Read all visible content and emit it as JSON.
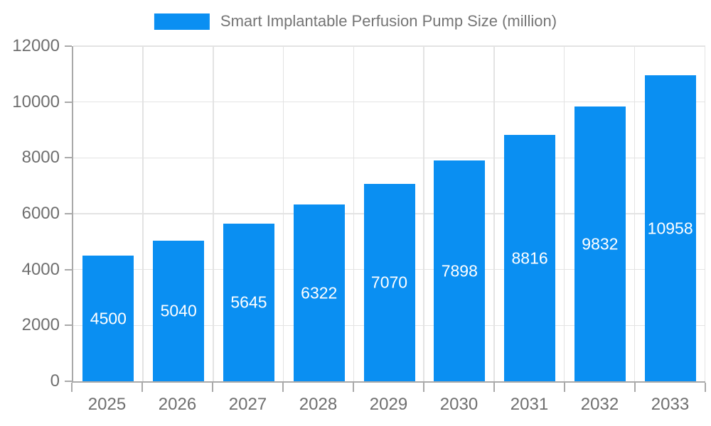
{
  "chart_data": {
    "type": "bar",
    "title": "Smart Implantable Perfusion Pump Size (million)",
    "legend": [
      "Smart Implantable Perfusion Pump Size (million)"
    ],
    "legend_position": "top-center",
    "categories": [
      "2025",
      "2026",
      "2027",
      "2028",
      "2029",
      "2030",
      "2031",
      "2032",
      "2033"
    ],
    "values": [
      4500,
      5040,
      5645,
      6322,
      7070,
      7898,
      8816,
      9832,
      10958
    ],
    "bar_value_labels": [
      "4500",
      "5040",
      "5645",
      "6322",
      "7070",
      "7898",
      "8816",
      "9832",
      "10958"
    ],
    "xlabel": "",
    "ylabel": "",
    "ylim": [
      0,
      12000
    ],
    "yticks": [
      0,
      2000,
      4000,
      6000,
      8000,
      10000,
      12000
    ],
    "grid": "horizontal-and-vertical"
  },
  "colors": {
    "bar": "#0a8ff2",
    "bar_label_text": "#ffffff",
    "axis_line": "#a9a9a9",
    "gridline": "#e3e3e3",
    "tick_label_text": "#6f6f6f",
    "legend_text": "#757575",
    "background": "#ffffff"
  }
}
